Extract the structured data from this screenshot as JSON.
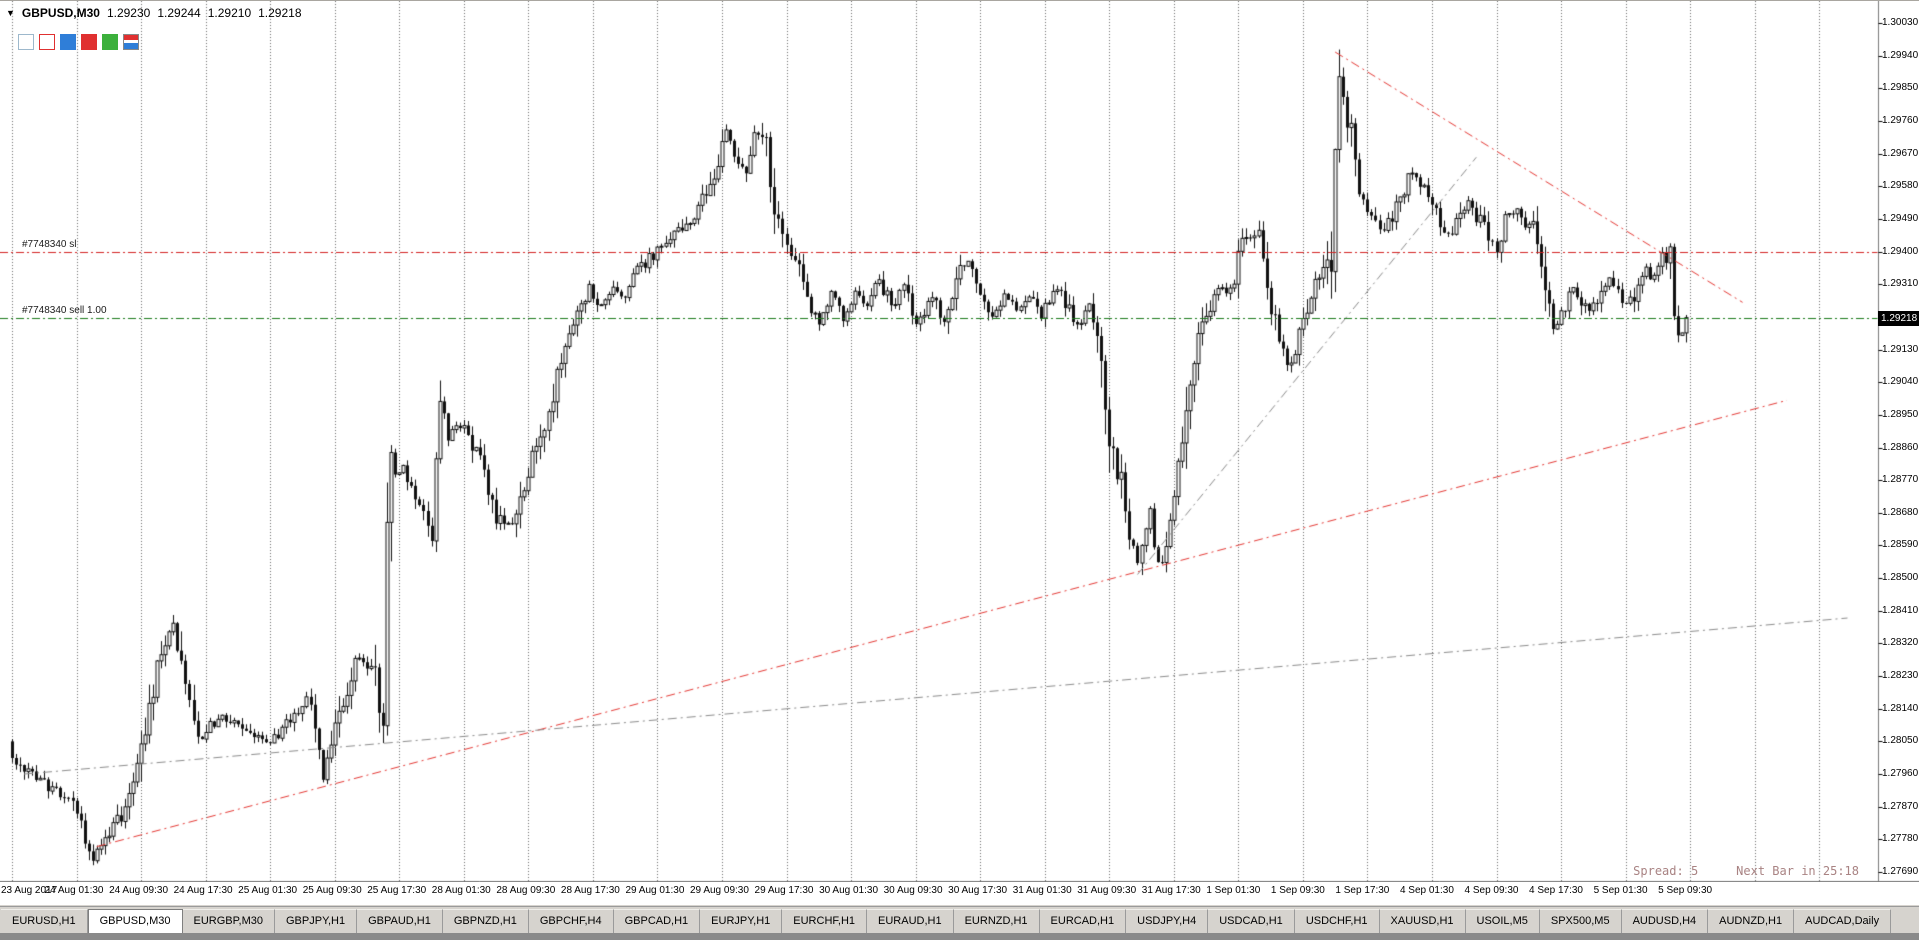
{
  "window": {
    "chrome_color": "#d6d3ce",
    "chart_bg": "#ffffff"
  },
  "header": {
    "dropdown_arrow": "▼",
    "symbol": "GBPUSD,M30",
    "open": "1.29230",
    "high": "1.29244",
    "low": "1.29210",
    "close": "1.29218"
  },
  "toolbar": {
    "swatches": [
      {
        "name": "white",
        "fill": "#ffffff",
        "border": "#9db8cc"
      },
      {
        "name": "red-outline",
        "fill": "#ffffff",
        "border": "#e03030"
      },
      {
        "name": "blue",
        "fill": "#2f7ed8",
        "border": "#2f7ed8"
      },
      {
        "name": "red",
        "fill": "#e03030",
        "border": "#e03030"
      },
      {
        "name": "green",
        "fill": "#3cb03c",
        "border": "#3cb03c"
      },
      {
        "name": "stripes",
        "fill": "stripes",
        "border": "#888888"
      }
    ]
  },
  "chart_data": {
    "type": "candlestick",
    "symbol": "GBPUSD",
    "timeframe": "M30",
    "current_price": "1.29218",
    "final_close": 1.29218,
    "y_axis": {
      "max": 1.3003,
      "min": 1.2769,
      "step": 0.0009,
      "labels": [
        "1.30030",
        "1.29940",
        "1.29850",
        "1.29760",
        "1.29670",
        "1.29580",
        "1.29490",
        "1.29400",
        "1.29310",
        "1.29220",
        "1.29130",
        "1.29040",
        "1.28950",
        "1.28860",
        "1.28770",
        "1.28680",
        "1.28590",
        "1.28500",
        "1.28410",
        "1.28320",
        "1.28230",
        "1.28140",
        "1.28050",
        "1.27960",
        "1.27870",
        "1.27780",
        "1.27690"
      ]
    },
    "x_axis": {
      "candles_per_gridline": 16,
      "labels": [
        "23 Aug 2017",
        "24 Aug 01:30",
        "24 Aug 09:30",
        "24 Aug 17:30",
        "25 Aug 01:30",
        "25 Aug 09:30",
        "25 Aug 17:30",
        "28 Aug 01:30",
        "28 Aug 09:30",
        "28 Aug 17:30",
        "29 Aug 01:30",
        "29 Aug 09:30",
        "29 Aug 17:30",
        "30 Aug 01:30",
        "30 Aug 09:30",
        "30 Aug 17:30",
        "31 Aug 01:30",
        "31 Aug 09:30",
        "31 Aug 17:30",
        "1 Sep 01:30",
        "1 Sep 09:30",
        "1 Sep 17:30",
        "4 Sep 01:30",
        "4 Sep 09:30",
        "4 Sep 17:30",
        "5 Sep 01:30",
        "5 Sep 09:30"
      ]
    },
    "orders": [
      {
        "label": "#7748340 sl",
        "price": 1.294,
        "color": "#d42222",
        "style": "dashdot"
      },
      {
        "label": "#7748340 sell 1.00",
        "price": 1.29218,
        "color": "#1a7a1a",
        "style": "dashdot"
      }
    ],
    "trendlines": [
      {
        "name": "descending-resistance-red",
        "color": "#e53935",
        "from": [
          328,
          1.2995
        ],
        "to": [
          429,
          1.2926
        ]
      },
      {
        "name": "ascending-support-red",
        "color": "#e53935",
        "from": [
          21,
          1.2776
        ],
        "to": [
          440,
          1.2899
        ]
      },
      {
        "name": "ascending-gray-long",
        "color": "#8c8c8c",
        "from": [
          3,
          1.2796
        ],
        "to": [
          455,
          1.2839
        ]
      },
      {
        "name": "ascending-gray-steep",
        "color": "#8c8c8c",
        "from": [
          279,
          1.2851
        ],
        "to": [
          363,
          1.2966
        ]
      }
    ],
    "anchors": [
      [
        0,
        1.2801
      ],
      [
        6,
        1.2795
      ],
      [
        14,
        1.2789
      ],
      [
        20,
        1.2773
      ],
      [
        24,
        1.2778
      ],
      [
        29,
        1.279
      ],
      [
        33,
        1.281
      ],
      [
        37,
        1.283
      ],
      [
        40,
        1.2837
      ],
      [
        43,
        1.2822
      ],
      [
        46,
        1.2806
      ],
      [
        52,
        1.2812
      ],
      [
        58,
        1.2807
      ],
      [
        64,
        1.2804
      ],
      [
        70,
        1.2812
      ],
      [
        74,
        1.2817
      ],
      [
        77,
        1.2796
      ],
      [
        82,
        1.2816
      ],
      [
        86,
        1.2829
      ],
      [
        90,
        1.2824
      ],
      [
        92,
        1.2802
      ],
      [
        93,
        1.2875
      ],
      [
        97,
        1.288
      ],
      [
        101,
        1.2872
      ],
      [
        104,
        1.2862
      ],
      [
        106,
        1.2902
      ],
      [
        108,
        1.289
      ],
      [
        112,
        1.2892
      ],
      [
        115,
        1.2885
      ],
      [
        120,
        1.2867
      ],
      [
        124,
        1.2863
      ],
      [
        128,
        1.288
      ],
      [
        132,
        1.2892
      ],
      [
        136,
        1.291
      ],
      [
        140,
        1.2922
      ],
      [
        143,
        1.293
      ],
      [
        146,
        1.2925
      ],
      [
        149,
        1.293
      ],
      [
        152,
        1.2928
      ],
      [
        155,
        1.2935
      ],
      [
        158,
        1.2938
      ],
      [
        162,
        1.2942
      ],
      [
        166,
        1.2947
      ],
      [
        170,
        1.2952
      ],
      [
        174,
        1.296
      ],
      [
        177,
        1.2972
      ],
      [
        179,
        1.2968
      ],
      [
        182,
        1.2962
      ],
      [
        184,
        1.2975
      ],
      [
        187,
        1.297
      ],
      [
        189,
        1.2952
      ],
      [
        191,
        1.2945
      ],
      [
        194,
        1.2938
      ],
      [
        197,
        1.2925
      ],
      [
        200,
        1.292
      ],
      [
        203,
        1.2928
      ],
      [
        206,
        1.2922
      ],
      [
        209,
        1.293
      ],
      [
        212,
        1.2925
      ],
      [
        215,
        1.2932
      ],
      [
        218,
        1.2925
      ],
      [
        221,
        1.293
      ],
      [
        224,
        1.292
      ],
      [
        228,
        1.2928
      ],
      [
        231,
        1.292
      ],
      [
        234,
        1.2932
      ],
      [
        237,
        1.2938
      ],
      [
        240,
        1.293
      ],
      [
        243,
        1.2922
      ],
      [
        246,
        1.2928
      ],
      [
        249,
        1.2923
      ],
      [
        252,
        1.2928
      ],
      [
        255,
        1.2922
      ],
      [
        258,
        1.293
      ],
      [
        261,
        1.2926
      ],
      [
        264,
        1.292
      ],
      [
        267,
        1.2925
      ],
      [
        270,
        1.2912
      ],
      [
        272,
        1.289
      ],
      [
        275,
        1.2875
      ],
      [
        277,
        1.2862
      ],
      [
        279,
        1.2853
      ],
      [
        282,
        1.2868
      ],
      [
        283,
        1.2858
      ],
      [
        285,
        1.2855
      ],
      [
        288,
        1.287
      ],
      [
        290,
        1.2885
      ],
      [
        292,
        1.29
      ],
      [
        294,
        1.2915
      ],
      [
        297,
        1.2925
      ],
      [
        299,
        1.293
      ],
      [
        302,
        1.2928
      ],
      [
        304,
        1.2938
      ],
      [
        306,
        1.2945
      ],
      [
        309,
        1.2944
      ],
      [
        311,
        1.2932
      ],
      [
        313,
        1.292
      ],
      [
        316,
        1.2908
      ],
      [
        318,
        1.2912
      ],
      [
        320,
        1.2922
      ],
      [
        322,
        1.2928
      ],
      [
        325,
        1.2938
      ],
      [
        327,
        1.2942
      ],
      [
        329,
        1.299
      ],
      [
        331,
        1.2975
      ],
      [
        333,
        1.2968
      ],
      [
        334,
        1.2958
      ],
      [
        336,
        1.2952
      ],
      [
        338,
        1.2948
      ],
      [
        340,
        1.2945
      ],
      [
        343,
        1.2952
      ],
      [
        345,
        1.2958
      ],
      [
        347,
        1.2962
      ],
      [
        350,
        1.2958
      ],
      [
        352,
        1.2952
      ],
      [
        354,
        1.2948
      ],
      [
        357,
        1.2945
      ],
      [
        359,
        1.295
      ],
      [
        361,
        1.2955
      ],
      [
        363,
        1.295
      ],
      [
        366,
        1.2945
      ],
      [
        368,
        1.294
      ],
      [
        370,
        1.2948
      ],
      [
        373,
        1.2952
      ],
      [
        375,
        1.2945
      ],
      [
        377,
        1.2948
      ],
      [
        379,
        1.2938
      ],
      [
        381,
        1.2925
      ],
      [
        382,
        1.2918
      ],
      [
        385,
        1.2925
      ],
      [
        387,
        1.293
      ],
      [
        389,
        1.2926
      ],
      [
        391,
        1.2923
      ],
      [
        394,
        1.2928
      ],
      [
        396,
        1.2932
      ],
      [
        398,
        1.2928
      ],
      [
        400,
        1.2925
      ],
      [
        403,
        1.293
      ],
      [
        405,
        1.2935
      ],
      [
        407,
        1.2932
      ],
      [
        409,
        1.2938
      ],
      [
        411,
        1.2942
      ],
      [
        412,
        1.292
      ],
      [
        413,
        1.2914
      ],
      [
        415,
        1.29218
      ]
    ]
  },
  "overlay": {
    "spread_label": "Spread: 5",
    "next_bar_label": "Next Bar in 25:18"
  },
  "tabs": {
    "active": "GBPUSD,M30",
    "items": [
      "EURUSD,H1",
      "GBPUSD,M30",
      "EURGBP,M30",
      "GBPJPY,H1",
      "GBPAUD,H1",
      "GBPNZD,H1",
      "GBPCHF,H4",
      "GBPCAD,H1",
      "EURJPY,H1",
      "EURCHF,H1",
      "EURAUD,H1",
      "EURNZD,H1",
      "EURCAD,H1",
      "USDJPY,H4",
      "USDCAD,H1",
      "USDCHF,H1",
      "XAUUSD,H1",
      "USOIL,M5",
      "SPX500,M5",
      "AUDUSD,H4",
      "AUDNZD,H1",
      "AUDCAD,Daily"
    ]
  }
}
